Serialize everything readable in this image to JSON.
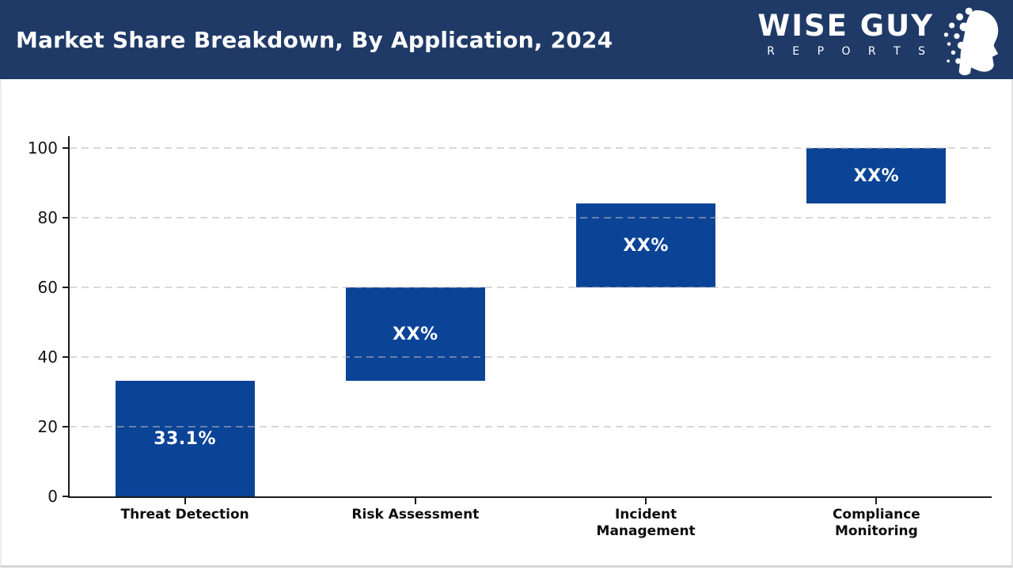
{
  "header": {
    "title": "Market Share Breakdown, By Application, 2024",
    "bg_color": "#1f3a67",
    "brand": {
      "line1": "WISE GUY",
      "line2": "R E P O R T S"
    }
  },
  "watermark": {
    "line1": "WISE GUY",
    "line2": "R E P O R T S"
  },
  "chart_data": {
    "type": "bar",
    "subtype": "floating-waterfall",
    "title": "Market Share Breakdown, By Application, 2024",
    "xlabel": "",
    "ylabel": "",
    "ylim": [
      0,
      100
    ],
    "yticks": [
      0,
      20,
      40,
      60,
      80,
      100
    ],
    "grid": "horizontal-dashed",
    "legend": "none",
    "bar_color": "#0b4397",
    "value_label_color": "#ffffff",
    "categories": [
      "Threat Detection",
      "Risk Assessment",
      "Incident\nManagement",
      "Compliance\nMonitoring"
    ],
    "bar_ranges": [
      [
        0,
        33.1
      ],
      [
        33.1,
        60.0
      ],
      [
        60.0,
        84.0
      ],
      [
        84.0,
        100.0
      ]
    ],
    "values": [
      33.1,
      26.9,
      24.0,
      16.0
    ],
    "value_labels": [
      "33.1%",
      "XX%",
      "XX%",
      "XX%"
    ]
  }
}
